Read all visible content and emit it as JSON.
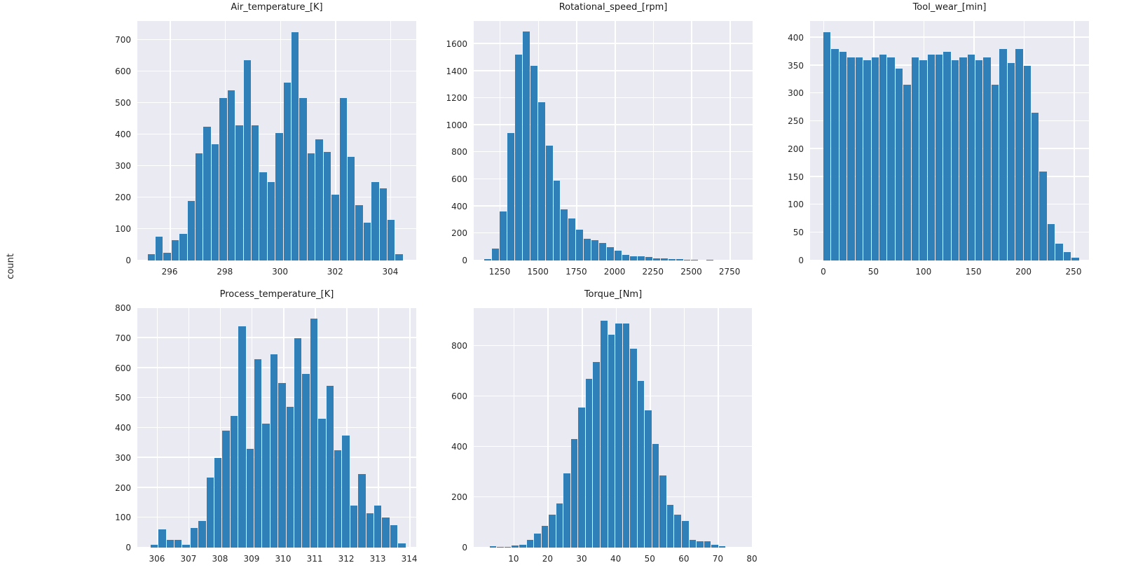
{
  "figure": {
    "shared_ylabel": "count"
  },
  "colors": {
    "bar": "#2f7fb8",
    "plot_background": "#eaeaf2",
    "grid": "#ffffff",
    "text": "#262626"
  },
  "chart_data": [
    {
      "type": "bar",
      "chart_kind": "histogram",
      "title": "Air_temperature_[K]",
      "xlabel": "",
      "ylabel": "count",
      "xlim": [
        294.83,
        304.94
      ],
      "ylim": [
        0,
        760
      ],
      "x_ticks": [
        296,
        298,
        300,
        302,
        304
      ],
      "y_ticks": [
        0,
        100,
        200,
        300,
        400,
        500,
        600,
        700
      ],
      "bin_start": 295.2,
      "bin_width": 0.29,
      "values": [
        20,
        75,
        25,
        65,
        85,
        190,
        340,
        425,
        370,
        515,
        540,
        430,
        635,
        430,
        280,
        250,
        405,
        565,
        725,
        515,
        340,
        385,
        345,
        210,
        515,
        330,
        175,
        120,
        250,
        230,
        130,
        20
      ],
      "grid": true,
      "legend": false
    },
    {
      "type": "bar",
      "chart_kind": "histogram",
      "title": "Rotational_speed_[rpm]",
      "xlabel": "",
      "ylabel": "count",
      "xlim": [
        1081,
        2900
      ],
      "ylim": [
        0,
        1770
      ],
      "x_ticks": [
        1250,
        1500,
        1750,
        2000,
        2250,
        2500,
        2750
      ],
      "y_ticks": [
        0,
        200,
        400,
        600,
        800,
        1000,
        1200,
        1400,
        1600
      ],
      "bin_start": 1150,
      "bin_width": 50,
      "values": [
        10,
        90,
        360,
        940,
        1520,
        1690,
        1440,
        1170,
        850,
        590,
        380,
        310,
        230,
        160,
        150,
        130,
        100,
        75,
        40,
        30,
        30,
        25,
        15,
        15,
        10,
        8,
        5,
        3,
        2,
        5,
        1,
        1
      ],
      "grid": true,
      "legend": false
    },
    {
      "type": "bar",
      "chart_kind": "histogram",
      "title": "Tool_wear_[min]",
      "xlabel": "",
      "ylabel": "count",
      "xlim": [
        -13.3,
        265.4
      ],
      "ylim": [
        0,
        430
      ],
      "x_ticks": [
        0,
        50,
        100,
        150,
        200,
        250
      ],
      "y_ticks": [
        0,
        50,
        100,
        150,
        200,
        250,
        300,
        350,
        400
      ],
      "bin_start": 0,
      "bin_width": 8,
      "values": [
        410,
        380,
        375,
        365,
        365,
        360,
        365,
        370,
        365,
        345,
        315,
        365,
        360,
        370,
        370,
        375,
        360,
        365,
        370,
        360,
        365,
        315,
        380,
        355,
        380,
        350,
        265,
        160,
        65,
        30,
        15,
        5
      ],
      "grid": true,
      "legend": false
    },
    {
      "type": "bar",
      "chart_kind": "histogram",
      "title": "Process_temperature_[K]",
      "xlabel": "",
      "ylabel": "count",
      "xlim": [
        305.38,
        314.22
      ],
      "ylim": [
        0,
        800
      ],
      "x_ticks": [
        306,
        307,
        308,
        309,
        310,
        311,
        312,
        313,
        314
      ],
      "y_ticks": [
        0,
        100,
        200,
        300,
        400,
        500,
        600,
        700,
        800
      ],
      "bin_start": 305.8,
      "bin_width": 0.2531,
      "values": [
        10,
        60,
        25,
        25,
        10,
        65,
        90,
        235,
        300,
        390,
        440,
        740,
        330,
        630,
        415,
        645,
        550,
        470,
        700,
        580,
        765,
        430,
        540,
        325,
        375,
        140,
        245,
        115,
        140,
        100,
        75,
        15
      ],
      "grid": true,
      "legend": false
    },
    {
      "type": "bar",
      "chart_kind": "histogram",
      "title": "Torque_[Nm]",
      "xlabel": "",
      "ylabel": "count",
      "xlim": [
        -1.7,
        80.2
      ],
      "ylim": [
        0,
        950
      ],
      "x_ticks": [
        10,
        20,
        30,
        40,
        50,
        60,
        70,
        80
      ],
      "y_ticks": [
        0,
        200,
        400,
        600,
        800
      ],
      "bin_start": 3.0,
      "bin_width": 2.17,
      "values": [
        5,
        2,
        3,
        8,
        10,
        30,
        55,
        85,
        130,
        175,
        295,
        430,
        555,
        670,
        735,
        900,
        845,
        890,
        890,
        790,
        660,
        545,
        410,
        285,
        170,
        130,
        105,
        30,
        25,
        25,
        10,
        5
      ],
      "grid": true,
      "legend": false
    }
  ]
}
